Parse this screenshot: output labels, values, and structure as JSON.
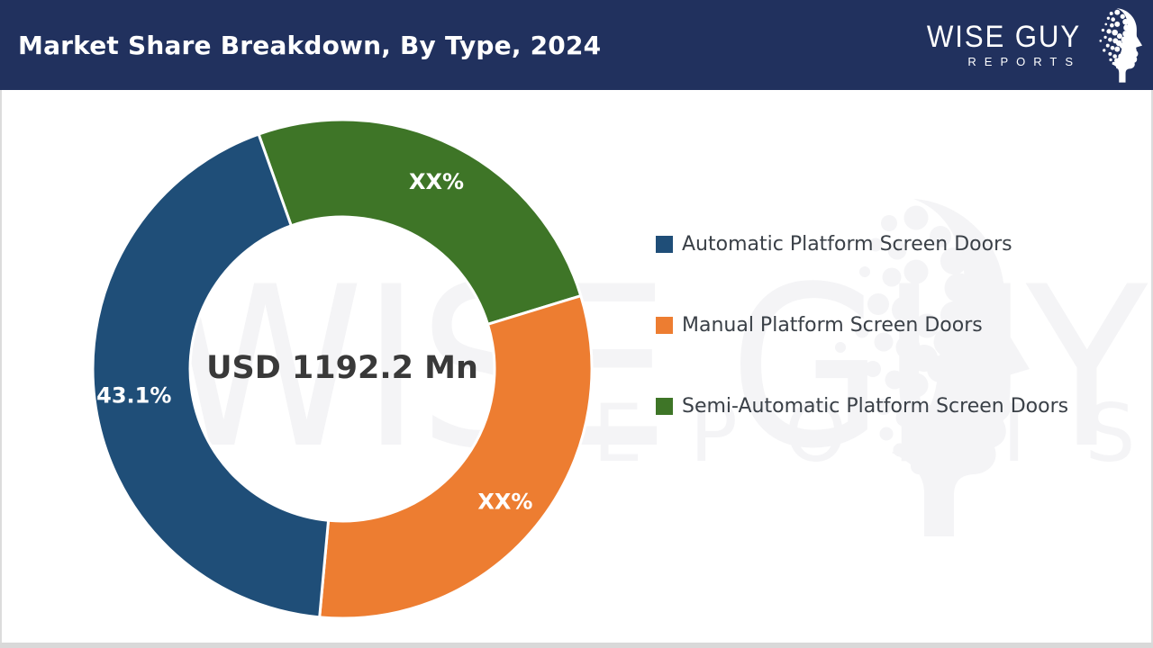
{
  "header": {
    "title": "Market Share Breakdown, By Type, 2024",
    "logo": {
      "line1": "WISE GUY",
      "line2": "REPORTS"
    }
  },
  "watermark": {
    "line1": "WISE GUY",
    "line2": "REPORTS"
  },
  "chart_data": {
    "type": "pie",
    "subtype": "donut",
    "title": "Market Share Breakdown, By Type, 2024",
    "center_label": "USD 1192.2 Mn",
    "start_angle_deg": -19.6,
    "donut_hole_ratio": 0.61,
    "legend_position": "right",
    "segments": [
      {
        "name": "Semi-Automatic Platform Screen Doors",
        "value_pct": 25.7,
        "display_label": "XX%",
        "color": "#3E7527"
      },
      {
        "name": "Manual Platform Screen Doors",
        "value_pct": 31.2,
        "display_label": "XX%",
        "color": "#ED7D31"
      },
      {
        "name": "Automatic Platform Screen Doors",
        "value_pct": 43.1,
        "display_label": "43.1%",
        "color": "#1F4E78"
      }
    ],
    "legend": [
      {
        "label": "Automatic Platform Screen Doors",
        "color": "#1F4E78"
      },
      {
        "label": "Manual Platform Screen Doors",
        "color": "#ED7D31"
      },
      {
        "label": "Semi-Automatic Platform Screen Doors",
        "color": "#3E7527"
      }
    ]
  }
}
